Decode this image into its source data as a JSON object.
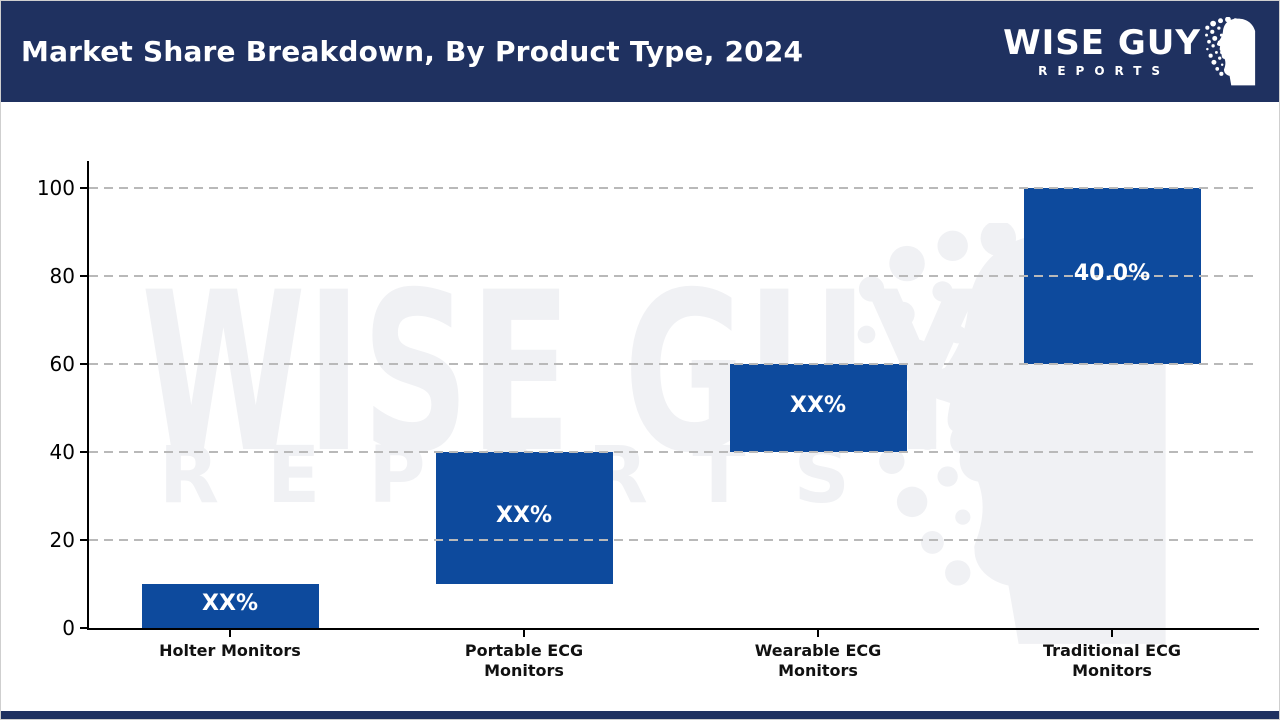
{
  "header": {
    "title": "Market Share Breakdown, By Product Type, 2024",
    "logo": {
      "name": "WISE GUY",
      "tagline": "REPORTS"
    }
  },
  "watermark": {
    "name": "WISE GUY",
    "tagline": "REPORTS"
  },
  "colors": {
    "header_bg": "#1f3160",
    "footer_bg": "#1f3160",
    "bar": "#0d4a9d",
    "grid": "#b9b9b9",
    "axis": "#000000",
    "bar_label": "#ffffff",
    "watermark": "#f0f1f4",
    "tick_text": "#000000"
  },
  "chart_data": {
    "type": "bar",
    "subtype": "waterfall",
    "title": "Market Share Breakdown, By Product Type, 2024",
    "xlabel": "",
    "ylabel": "",
    "ylim": [
      0,
      100
    ],
    "yticks": [
      0,
      20,
      40,
      60,
      80,
      100
    ],
    "grid": true,
    "grid_style": "dashed",
    "legend": "none",
    "categories": [
      "Holter Monitors",
      "Portable ECG Monitors",
      "Wearable ECG Monitors",
      "Traditional ECG Monitors"
    ],
    "category_lines": [
      [
        "Holter Monitors"
      ],
      [
        "Portable ECG",
        "Monitors"
      ],
      [
        "Wearable ECG",
        "Monitors"
      ],
      [
        "Traditional ECG",
        "Monitors"
      ]
    ],
    "segments": [
      {
        "category": "Holter Monitors",
        "start": 0,
        "end": 10,
        "label": "XX%"
      },
      {
        "category": "Portable ECG Monitors",
        "start": 10,
        "end": 40,
        "label": "XX%"
      },
      {
        "category": "Wearable ECG Monitors",
        "start": 40,
        "end": 60,
        "label": "XX%"
      },
      {
        "category": "Traditional ECG Monitors",
        "start": 60,
        "end": 100,
        "label": "40.0%"
      }
    ]
  }
}
